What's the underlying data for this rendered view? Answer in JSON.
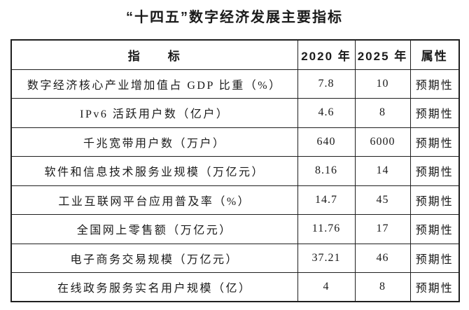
{
  "title": "“十四五”数字经济发展主要指标",
  "colors": {
    "text": "#1a1a1a",
    "border": "#1f1f1f",
    "background": "#ffffff"
  },
  "table": {
    "headers": {
      "indicator": "指　　标",
      "y2020": "2020 年",
      "y2025": "2025 年",
      "attribute": "属性"
    },
    "rows": [
      {
        "indicator": "数字经济核心产业增加值占 GDP 比重（%）",
        "y2020": "7.8",
        "y2025": "10",
        "attribute": "预期性"
      },
      {
        "indicator": "IPv6 活跃用户数（亿户）",
        "y2020": "4.6",
        "y2025": "8",
        "attribute": "预期性"
      },
      {
        "indicator": "千兆宽带用户数（万户）",
        "y2020": "640",
        "y2025": "6000",
        "attribute": "预期性"
      },
      {
        "indicator": "软件和信息技术服务业规模（万亿元）",
        "y2020": "8.16",
        "y2025": "14",
        "attribute": "预期性"
      },
      {
        "indicator": "工业互联网平台应用普及率（%）",
        "y2020": "14.7",
        "y2025": "45",
        "attribute": "预期性"
      },
      {
        "indicator": "全国网上零售额（万亿元）",
        "y2020": "11.76",
        "y2025": "17",
        "attribute": "预期性"
      },
      {
        "indicator": "电子商务交易规模（万亿元）",
        "y2020": "37.21",
        "y2025": "46",
        "attribute": "预期性"
      },
      {
        "indicator": "在线政务服务实名用户规模（亿）",
        "y2020": "4",
        "y2025": "8",
        "attribute": "预期性"
      }
    ]
  }
}
